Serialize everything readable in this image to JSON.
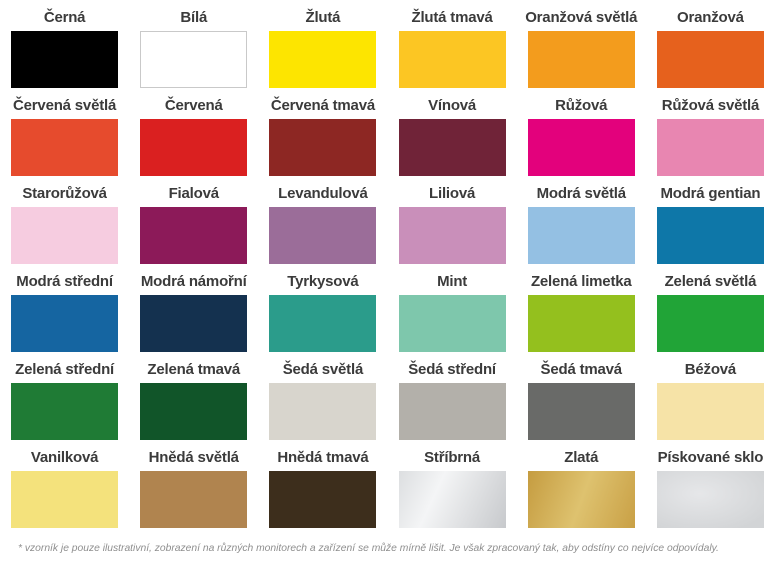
{
  "page": {
    "background": "#ffffff",
    "label_color": "#3b3b3b",
    "footnote": "* vzorník je pouze ilustrativní, zobrazení na různých monitorech a zařízení se může mírně lišit. Je však zpracovaný tak, aby odstíny co nejvíce odpovídaly.",
    "footnote_color": "#8e8e8e"
  },
  "chart_data": {
    "type": "table",
    "columns": 6,
    "rows": 6,
    "swatches": [
      {
        "label": "Černá",
        "color": "#000000"
      },
      {
        "label": "Bílá",
        "color": "#ffffff",
        "border": "#c9c9c9"
      },
      {
        "label": "Žlutá",
        "color": "#fde500"
      },
      {
        "label": "Žlutá tmavá",
        "color": "#fcc623"
      },
      {
        "label": "Oranžová světlá",
        "color": "#f39c1d"
      },
      {
        "label": "Oranžová",
        "color": "#e6611d"
      },
      {
        "label": "Červená světlá",
        "color": "#e64b2d"
      },
      {
        "label": "Červená",
        "color": "#da2020"
      },
      {
        "label": "Červená tmavá",
        "color": "#8d2723"
      },
      {
        "label": "Vínová",
        "color": "#702338"
      },
      {
        "label": "Růžová",
        "color": "#e3017c"
      },
      {
        "label": "Růžová světlá",
        "color": "#e886b1"
      },
      {
        "label": "Starorůžová",
        "color": "#f6cce0"
      },
      {
        "label": "Fialová",
        "color": "#8c1a59"
      },
      {
        "label": "Levandulová",
        "color": "#9b6d99"
      },
      {
        "label": "Liliová",
        "color": "#c98fba"
      },
      {
        "label": "Modrá světlá",
        "color": "#94c0e3"
      },
      {
        "label": "Modrá gentian",
        "color": "#0e77a8"
      },
      {
        "label": "Modrá střední",
        "color": "#1565a1"
      },
      {
        "label": "Modrá námořní",
        "color": "#14314f"
      },
      {
        "label": "Tyrkysová",
        "color": "#2b9c8b"
      },
      {
        "label": "Mint",
        "color": "#7ec7ac"
      },
      {
        "label": "Zelená limetka",
        "color": "#94c01e"
      },
      {
        "label": "Zelená světlá",
        "color": "#21a437"
      },
      {
        "label": "Zelená střední",
        "color": "#1f7b35"
      },
      {
        "label": "Zelená tmavá",
        "color": "#115529"
      },
      {
        "label": "Šedá světlá",
        "color": "#d8d5cd"
      },
      {
        "label": "Šedá střední",
        "color": "#b3b0aa"
      },
      {
        "label": "Šedá tmavá",
        "color": "#696a68"
      },
      {
        "label": "Béžová",
        "color": "#f6e3a7"
      },
      {
        "label": "Vanilková",
        "color": "#f4e27c"
      },
      {
        "label": "Hnědá světlá",
        "color": "#b0844f"
      },
      {
        "label": "Hnědá tmavá",
        "color": "#3d2e1c"
      },
      {
        "label": "Stříbrná",
        "color": "linear-gradient(115deg, #dcdee0 0%, #f4f5f6 35%, #c7c9cc 100%)"
      },
      {
        "label": "Zlatá",
        "color": "linear-gradient(110deg, #c59c40 0%, #dec26f 50%, #c9a045 100%)"
      },
      {
        "label": "Pískované sklo",
        "color": "radial-gradient(ellipse at 40% 40%, #e6e7e9 0%, #d2d4d6 85%)"
      }
    ]
  }
}
